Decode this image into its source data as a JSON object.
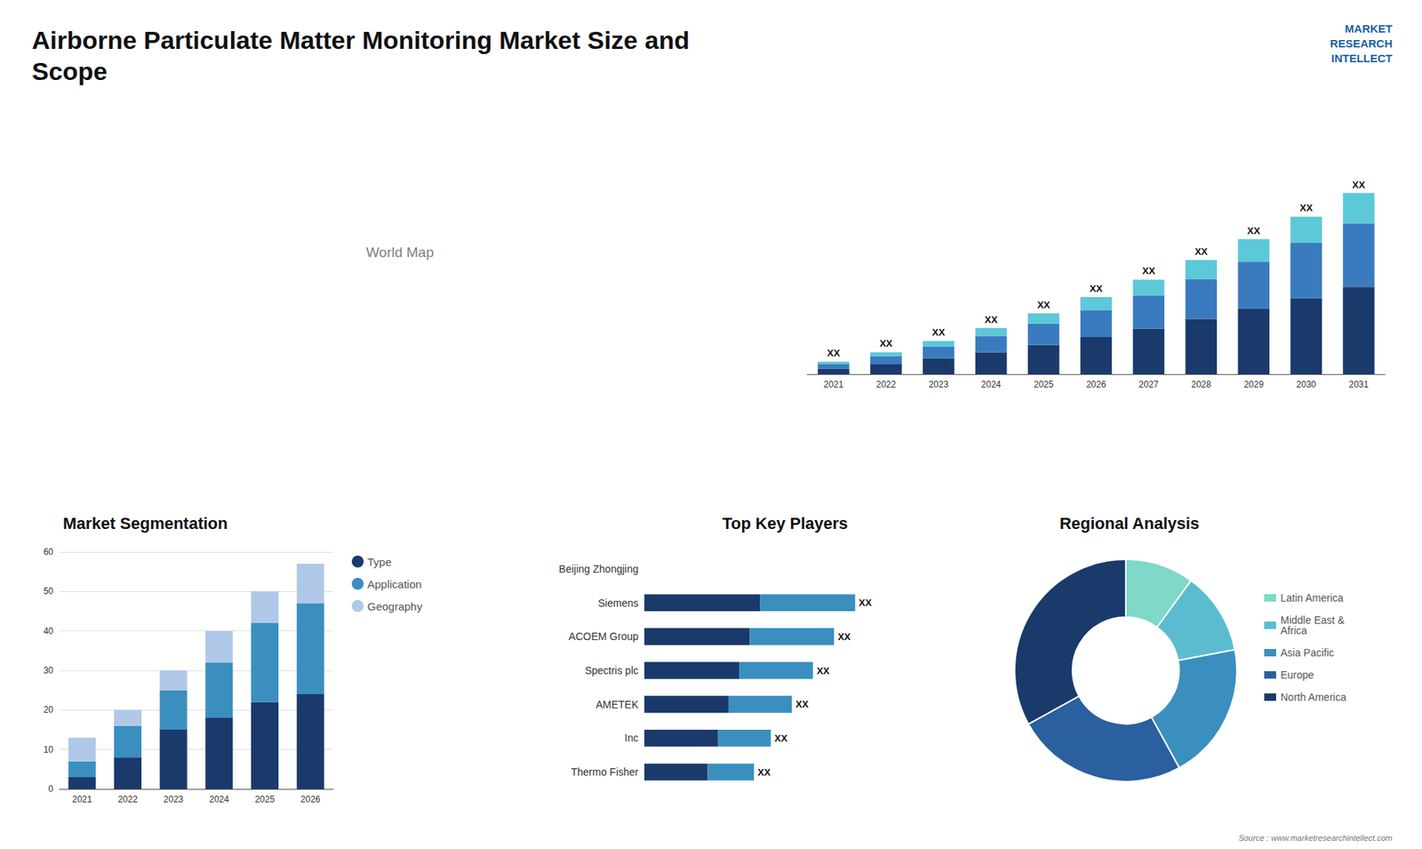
{
  "title": "Airborne Particulate Matter Monitoring Market Size and\nScope",
  "annotations": [
    "MARKET\nRESEARCH\nINTELLECT",
    "World Map",
    "Source : www.marketresearchintellect.com"
  ],
  "chart_data": [
    {
      "type": "bar",
      "stacked": true,
      "categories": [
        "2021",
        "2022",
        "2023",
        "2024",
        "2025",
        "2026",
        "2027",
        "2028",
        "2029",
        "2030",
        "2031"
      ],
      "series": [
        {
          "color": "#1a3a6b",
          "values": [
            1.0,
            1.8,
            2.8,
            3.9,
            5.2,
            6.6,
            8.1,
            9.8,
            11.6,
            13.5,
            15.5
          ]
        },
        {
          "color": "#3a7bbf",
          "values": [
            0.8,
            1.4,
            2.1,
            2.9,
            3.8,
            4.8,
            5.9,
            7.1,
            8.4,
            9.8,
            11.3
          ]
        },
        {
          "color": "#5cc8d8",
          "values": [
            0.4,
            0.7,
            1.0,
            1.4,
            1.8,
            2.3,
            2.8,
            3.4,
            4.0,
            4.7,
            5.4
          ],
          "value_labels": [
            "XX",
            "XX",
            "XX",
            "XX",
            "XX",
            "XX",
            "XX",
            "XX",
            "XX",
            "XX",
            "XX"
          ]
        }
      ],
      "ylim": [
        0,
        43.47
      ],
      "tick_labels": "x",
      "grid": false
    },
    {
      "type": "bar",
      "title": "Market Segmentation",
      "stacked": true,
      "categories": [
        "2021",
        "2022",
        "2023",
        "2024",
        "2025",
        "2026"
      ],
      "series": [
        {
          "name": "Type",
          "color": "#1a3a6b",
          "values": [
            3,
            8,
            15,
            18,
            22,
            24
          ]
        },
        {
          "name": "Application",
          "color": "#3a8fbf",
          "values": [
            4,
            8,
            10,
            14,
            20,
            23
          ]
        },
        {
          "name": "Geography",
          "color": "#b0c8e8",
          "values": [
            6,
            4,
            5,
            8,
            8,
            10
          ]
        }
      ],
      "ylim": [
        0,
        60
      ],
      "yticks": [
        0,
        10,
        20,
        30,
        40,
        50,
        60
      ],
      "grid": true,
      "legend": "right"
    },
    {
      "type": "bar",
      "title": "Top Key Players",
      "orientation": "horizontal",
      "stacked": true,
      "categories": [
        "Beijing Zhongjing",
        "Siemens",
        "ACOEM Group",
        "Spectris plc",
        "AMETEK",
        "Inc",
        "Thermo Fisher"
      ],
      "series": [
        {
          "color": "#1a3a6b",
          "values": [
            0,
            5.5,
            5.0,
            4.5,
            4.0,
            3.5,
            3.0
          ]
        },
        {
          "color": "#3a8fbf",
          "values": [
            0,
            4.5,
            4.0,
            3.5,
            3.0,
            2.5,
            2.2
          ],
          "value_labels": [
            null,
            "XX",
            "XX",
            "XX",
            "XX",
            "XX",
            "XX"
          ]
        }
      ],
      "xlim": [
        0,
        13
      ],
      "tick_labels": "y",
      "grid": false
    },
    {
      "type": "pie",
      "title": "Regional Analysis",
      "categories": [
        "Latin America",
        "Middle East &\nAfrica",
        "Asia Pacific",
        "Europe",
        "North America"
      ],
      "values": [
        10,
        12,
        20,
        25,
        33
      ],
      "colors": [
        "#7fd8c8",
        "#5bbcd0",
        "#3a8fbf",
        "#2a5fa0",
        "#1a3a6b"
      ],
      "legend": "right"
    }
  ]
}
